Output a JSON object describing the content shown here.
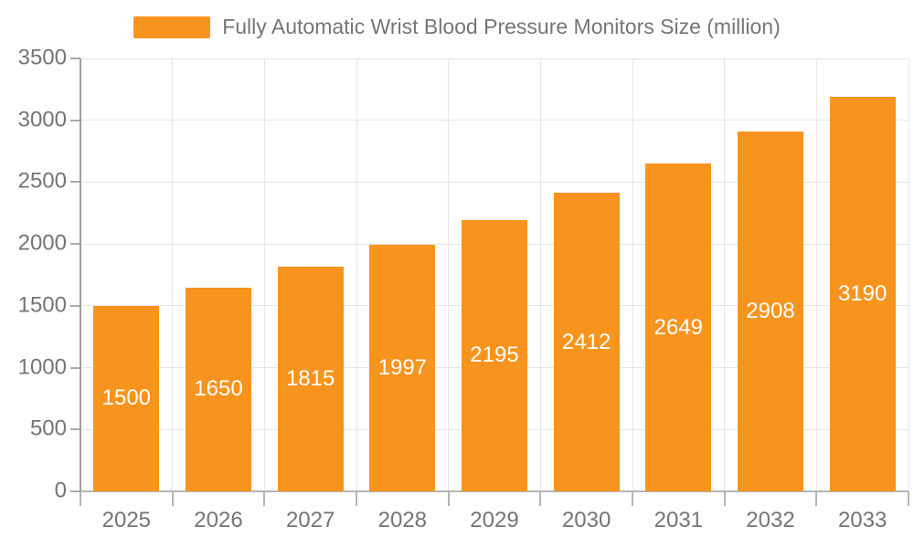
{
  "legend": {
    "label": "Fully Automatic Wrist Blood Pressure Monitors Size (million)"
  },
  "colors": {
    "bar": "#F7941E",
    "axis_text": "#757575",
    "bar_label": "#FFFFFF",
    "gridline": "#E6E6E6"
  },
  "chart_data": {
    "type": "bar",
    "title": "Fully Automatic Wrist Blood Pressure Monitors Size (million)",
    "categories": [
      "2025",
      "2026",
      "2027",
      "2028",
      "2029",
      "2030",
      "2031",
      "2032",
      "2033"
    ],
    "values": [
      1500,
      1650,
      1815,
      1997,
      2195,
      2412,
      2649,
      2908,
      3190
    ],
    "xlabel": "",
    "ylabel": "",
    "ylim": [
      0,
      3500
    ],
    "yticks": [
      0,
      500,
      1000,
      1500,
      2000,
      2500,
      3000,
      3500
    ],
    "grid": true,
    "legend_position": "top",
    "bar_labels_inside": true
  }
}
